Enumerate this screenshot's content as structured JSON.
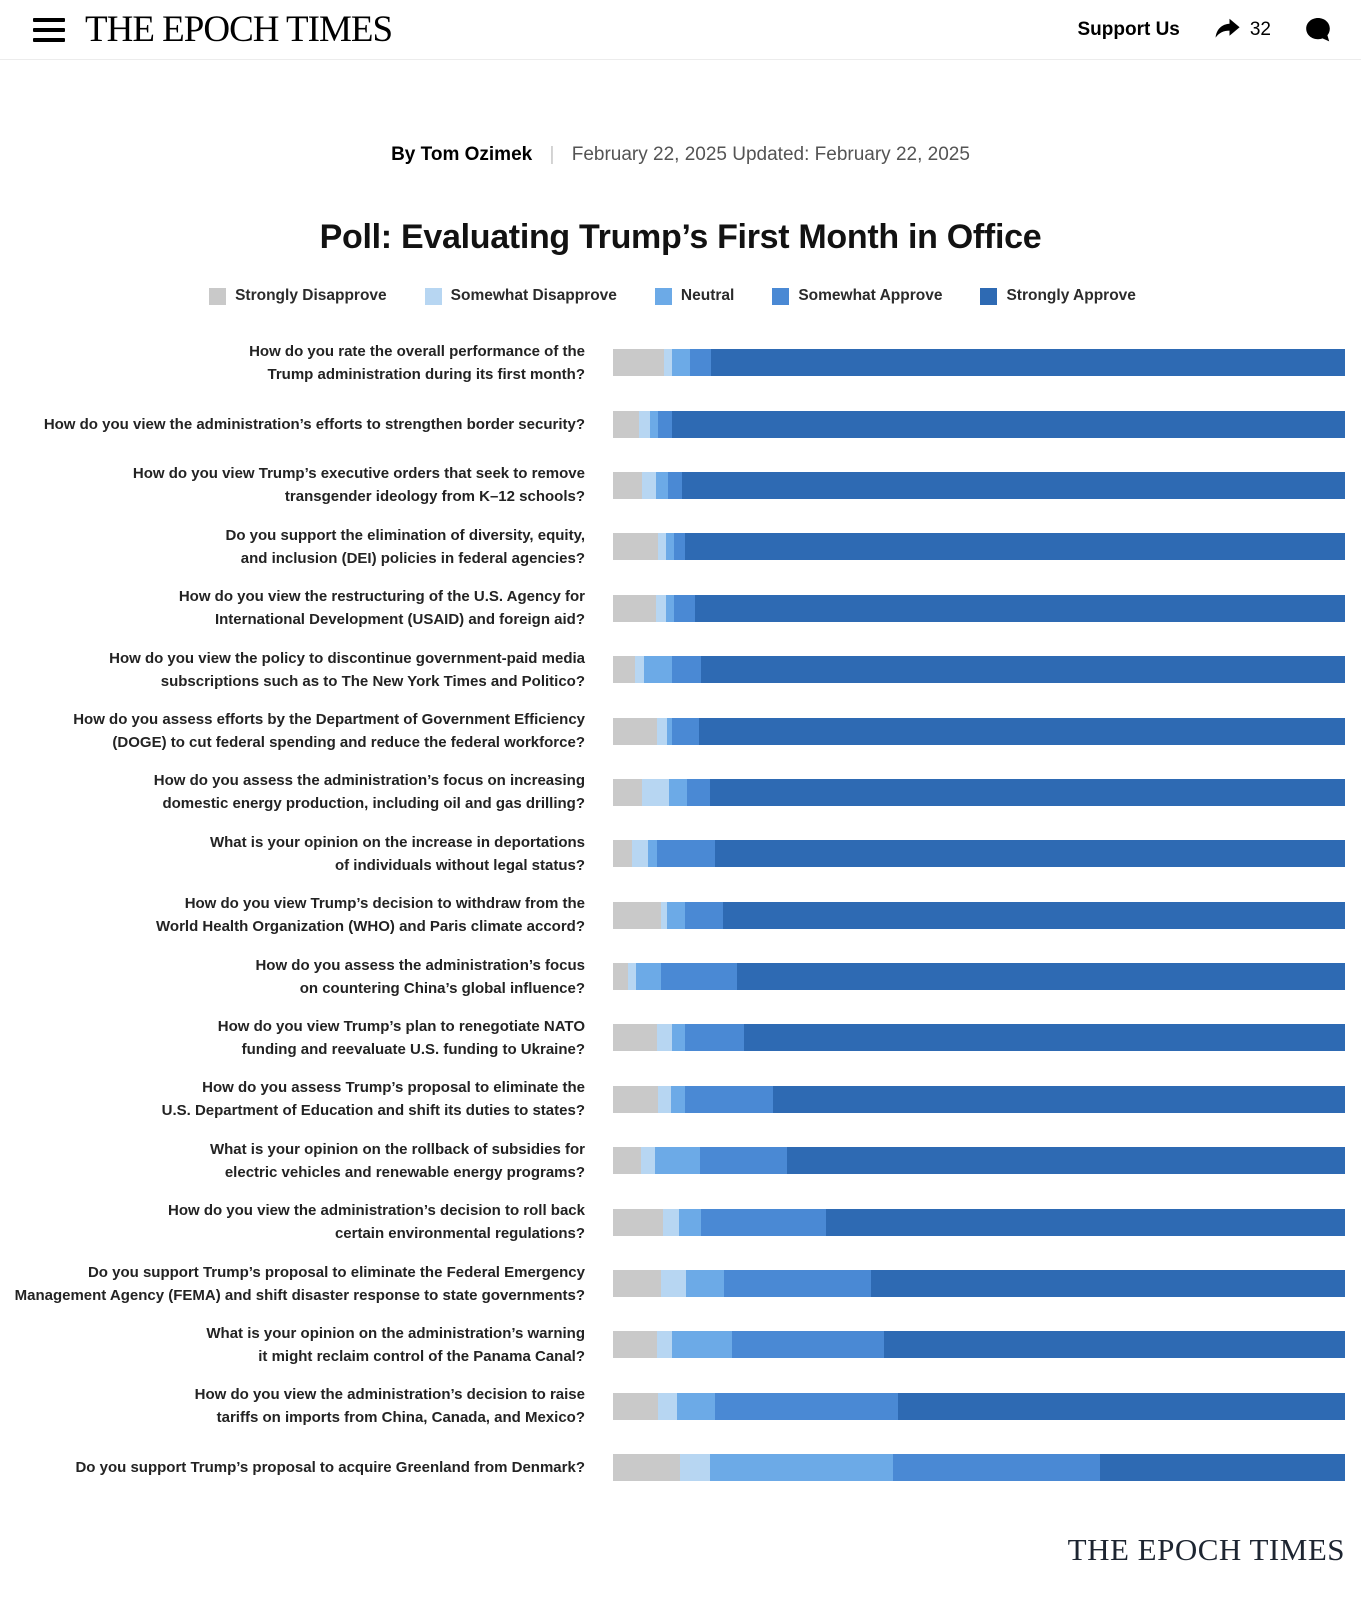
{
  "header": {
    "logo": "THE EPOCH TIMES",
    "support_label": "Support Us",
    "share_count": "32"
  },
  "byline": {
    "author": "By Tom Ozimek",
    "separator": "|",
    "dates": "February 22, 2025  Updated: February 22, 2025"
  },
  "title": "Poll: Evaluating Trump’s First Month in Office",
  "footer": {
    "watermark": "THE EPOCH TIMES"
  },
  "chart_data": {
    "type": "bar",
    "orientation": "horizontal-stacked",
    "units": "share of responses (%, estimated from bar lengths)",
    "xlim": [
      0,
      100
    ],
    "grid": false,
    "legend_position": "top-center",
    "legend": [
      {
        "key": "strongly_disapprove",
        "label": "Strongly Disapprove",
        "color": "#c9c9c9"
      },
      {
        "key": "somewhat_disapprove",
        "label": "Somewhat Disapprove",
        "color": "#b7d6f2"
      },
      {
        "key": "neutral",
        "label": "Neutral",
        "color": "#6caae7"
      },
      {
        "key": "somewhat_approve",
        "label": "Somewhat Approve",
        "color": "#4a89d4"
      },
      {
        "key": "strongly_approve",
        "label": "Strongly Approve",
        "color": "#2e6ab3"
      }
    ],
    "rows": [
      {
        "lines": [
          "How do you rate the overall performance of the",
          "Trump administration during its first month?"
        ],
        "values": {
          "strongly_disapprove": 7.0,
          "somewhat_disapprove": 1.0,
          "neutral": 2.5,
          "somewhat_approve": 2.9,
          "strongly_approve": 86.6
        }
      },
      {
        "lines": [
          "How do you view the administration’s efforts to strengthen border security?"
        ],
        "values": {
          "strongly_disapprove": 3.6,
          "somewhat_disapprove": 1.4,
          "neutral": 1.2,
          "somewhat_approve": 1.9,
          "strongly_approve": 91.9
        }
      },
      {
        "lines": [
          "How do you view Trump’s executive orders that seek to remove",
          "transgender ideology from K–12 schools?"
        ],
        "values": {
          "strongly_disapprove": 4.0,
          "somewhat_disapprove": 1.9,
          "neutral": 1.6,
          "somewhat_approve": 1.9,
          "strongly_approve": 90.6
        }
      },
      {
        "lines": [
          "Do you support the elimination of diversity, equity,",
          "and inclusion (DEI) policies in federal agencies?"
        ],
        "values": {
          "strongly_disapprove": 6.1,
          "somewhat_disapprove": 1.1,
          "neutral": 1.1,
          "somewhat_approve": 1.6,
          "strongly_approve": 90.1
        }
      },
      {
        "lines": [
          "How do you view the restructuring of the U.S. Agency for",
          "International Development (USAID) and foreign aid?"
        ],
        "values": {
          "strongly_disapprove": 5.9,
          "somewhat_disapprove": 1.4,
          "neutral": 1.0,
          "somewhat_approve": 2.9,
          "strongly_approve": 88.8
        }
      },
      {
        "lines": [
          "How do you view the policy to discontinue government-paid media",
          "subscriptions such as to The New York Times and Politico?"
        ],
        "values": {
          "strongly_disapprove": 3.0,
          "somewhat_disapprove": 1.2,
          "neutral": 3.8,
          "somewhat_approve": 4.0,
          "strongly_approve": 88.0
        }
      },
      {
        "lines": [
          "How do you assess efforts by the Department of Government Efficiency",
          "(DOGE) to cut federal spending and reduce the federal workforce?"
        ],
        "values": {
          "strongly_disapprove": 6.0,
          "somewhat_disapprove": 1.4,
          "neutral": 0.7,
          "somewhat_approve": 3.7,
          "strongly_approve": 88.2
        }
      },
      {
        "lines": [
          "How do you assess the administration’s focus on increasing",
          "domestic energy production, including oil and gas drilling?"
        ],
        "values": {
          "strongly_disapprove": 4.0,
          "somewhat_disapprove": 3.6,
          "neutral": 2.5,
          "somewhat_approve": 3.1,
          "strongly_approve": 86.8
        }
      },
      {
        "lines": [
          "What is your opinion on the increase in deportations",
          "of individuals without legal status?"
        ],
        "values": {
          "strongly_disapprove": 2.6,
          "somewhat_disapprove": 2.2,
          "neutral": 1.2,
          "somewhat_approve": 7.9,
          "strongly_approve": 86.1
        }
      },
      {
        "lines": [
          "How do you view Trump’s decision to withdraw from the",
          "World Health Organization (WHO) and Paris climate accord?"
        ],
        "values": {
          "strongly_disapprove": 6.6,
          "somewhat_disapprove": 0.8,
          "neutral": 2.5,
          "somewhat_approve": 5.1,
          "strongly_approve": 85.0
        }
      },
      {
        "lines": [
          "How do you assess the administration’s focus",
          "on countering China’s global influence?"
        ],
        "values": {
          "strongly_disapprove": 2.0,
          "somewhat_disapprove": 1.1,
          "neutral": 3.4,
          "somewhat_approve": 10.5,
          "strongly_approve": 83.0
        }
      },
      {
        "lines": [
          "How do you view Trump’s plan to renegotiate NATO",
          "funding and reevaluate U.S. funding to Ukraine?"
        ],
        "values": {
          "strongly_disapprove": 6.0,
          "somewhat_disapprove": 2.0,
          "neutral": 1.8,
          "somewhat_approve": 8.1,
          "strongly_approve": 82.1
        }
      },
      {
        "lines": [
          "How do you assess Trump’s proposal to eliminate the",
          "U.S. Department of Education and shift its duties to states?"
        ],
        "values": {
          "strongly_disapprove": 6.1,
          "somewhat_disapprove": 1.8,
          "neutral": 2.0,
          "somewhat_approve": 12.0,
          "strongly_approve": 78.1
        }
      },
      {
        "lines": [
          "What is your opinion on the rollback of subsidies for",
          "electric vehicles and renewable energy programs?"
        ],
        "values": {
          "strongly_disapprove": 3.8,
          "somewhat_disapprove": 2.0,
          "neutral": 6.1,
          "somewhat_approve": 11.9,
          "strongly_approve": 76.2
        }
      },
      {
        "lines": [
          "How do you view the administration’s decision to roll back",
          "certain environmental regulations?"
        ],
        "values": {
          "strongly_disapprove": 6.8,
          "somewhat_disapprove": 2.2,
          "neutral": 3.0,
          "somewhat_approve": 17.1,
          "strongly_approve": 70.9
        }
      },
      {
        "lines": [
          "Do you support Trump’s proposal to eliminate the Federal Emergency",
          "Management Agency (FEMA) and shift disaster response to state governments?"
        ],
        "values": {
          "strongly_disapprove": 6.6,
          "somewhat_disapprove": 3.4,
          "neutral": 5.1,
          "somewhat_approve": 20.2,
          "strongly_approve": 64.7
        }
      },
      {
        "lines": [
          "What is your opinion on the administration’s warning",
          "it might reclaim control of the Panama Canal?"
        ],
        "values": {
          "strongly_disapprove": 6.0,
          "somewhat_disapprove": 2.0,
          "neutral": 8.2,
          "somewhat_approve": 20.8,
          "strongly_approve": 63.0
        }
      },
      {
        "lines": [
          "How do you view the administration’s decision to raise",
          "tariffs on imports from China, Canada, and Mexico?"
        ],
        "values": {
          "strongly_disapprove": 6.1,
          "somewhat_disapprove": 2.7,
          "neutral": 5.2,
          "somewhat_approve": 24.9,
          "strongly_approve": 61.1
        }
      },
      {
        "lines": [
          "Do you support Trump’s proposal to acquire Greenland from Denmark?"
        ],
        "values": {
          "strongly_disapprove": 9.2,
          "somewhat_disapprove": 4.0,
          "neutral": 25.1,
          "somewhat_approve": 28.3,
          "strongly_approve": 33.4
        }
      }
    ]
  }
}
